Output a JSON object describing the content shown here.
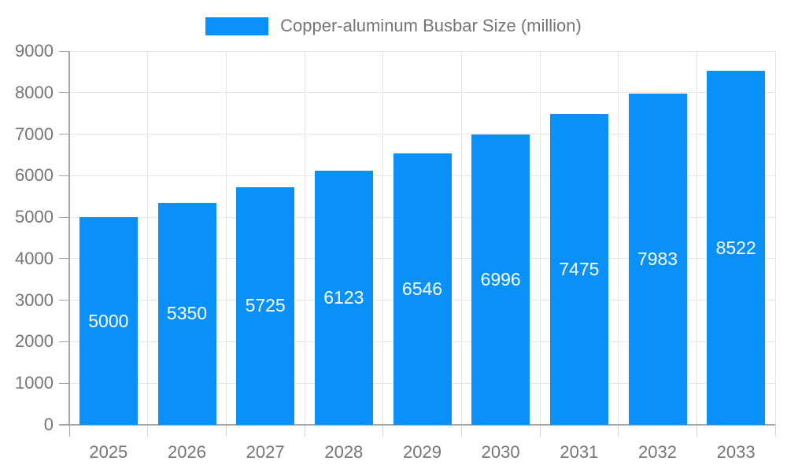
{
  "chart_data": {
    "type": "bar",
    "title": "Copper-aluminum Busbar Size (million)",
    "categories": [
      "2025",
      "2026",
      "2027",
      "2028",
      "2029",
      "2030",
      "2031",
      "2032",
      "2033"
    ],
    "series": [
      {
        "name": "Copper-aluminum Busbar Size (million)",
        "values": [
          5000,
          5350,
          5725,
          6123,
          6546,
          6996,
          7475,
          7983,
          8522
        ]
      }
    ],
    "xlabel": "",
    "ylabel": "",
    "ylim": [
      0,
      9000
    ],
    "ytick_step": 1000,
    "ytick_labels": [
      "0",
      "1000",
      "2000",
      "3000",
      "4000",
      "5000",
      "6000",
      "7000",
      "8000",
      "9000"
    ],
    "grid": true,
    "legend_position": "top-center",
    "colors": {
      "bar": "#0991f9",
      "bar_value_label": "#ffffff",
      "axis_text": "#757575",
      "gridline": "#e6e6e6",
      "axis_line": "#a6a6a6",
      "minor_tick": "#d4d4d4",
      "legend_text": "#757575",
      "background": "#ffffff"
    }
  }
}
